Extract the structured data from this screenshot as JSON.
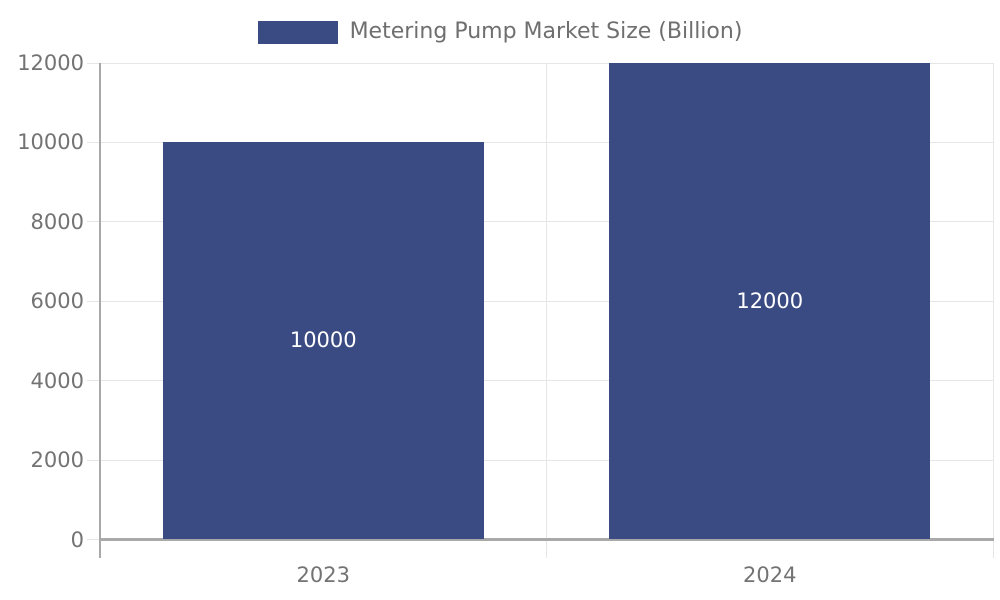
{
  "legend": {
    "label": "Metering Pump Market Size (Billion)"
  },
  "chart_data": {
    "type": "bar",
    "title": "Metering Pump Market Size (Billion)",
    "categories": [
      "2023",
      "2024"
    ],
    "values": [
      10000,
      12000
    ],
    "value_labels": [
      "10000",
      "12000"
    ],
    "xlabel": "",
    "ylabel": "",
    "ylim": [
      0,
      12000
    ],
    "yticks": [
      0,
      2000,
      4000,
      6000,
      8000,
      10000,
      12000
    ],
    "grid": true,
    "legend_position": "top",
    "value_label_position": "inside-center"
  },
  "colors": {
    "bar": "#3a4a82",
    "axis": "#a9a9a9",
    "gridline": "#e6e6e6",
    "tick_label": "#737373",
    "legend_text": "#6f6f6f",
    "value_label": "#ffffff",
    "background": "#ffffff"
  }
}
